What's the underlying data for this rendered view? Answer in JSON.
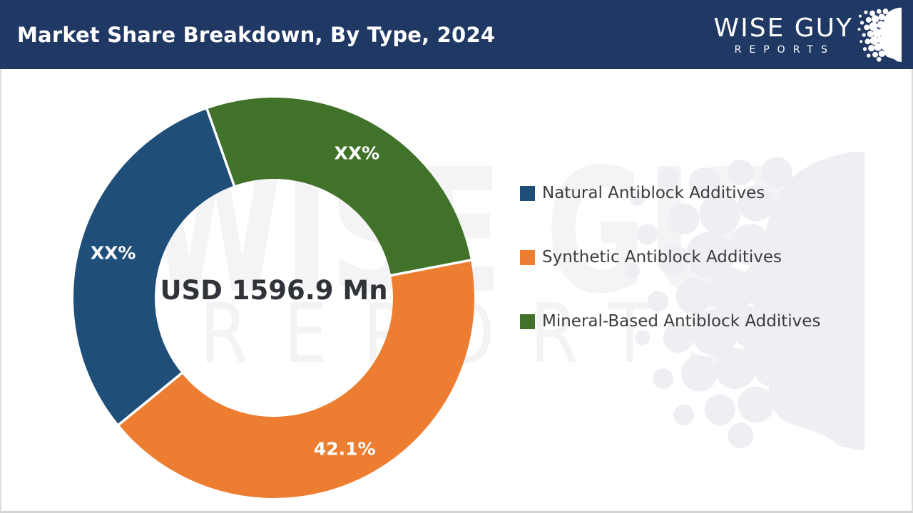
{
  "header": {
    "title": "Market Share Breakdown, By Type, 2024",
    "bg_color": "#203864",
    "logo": {
      "wordmark": "WISE GUY",
      "sub": "REPORTS"
    }
  },
  "watermark": {
    "wordmark": "WISE GUY",
    "sub": "REPORTS"
  },
  "chart_data": {
    "type": "pie",
    "subtype": "donut",
    "title": "Market Share Breakdown, By Type, 2024",
    "center_label": "USD 1596.9 Mn",
    "start_angle_deg": -19.5,
    "legend_position": "right",
    "segments": [
      {
        "label": "Mineral-Based Antiblock Additives",
        "percent": 27.4,
        "display_label": "XX%",
        "color": "#41722A"
      },
      {
        "label": "Synthetic Antiblock Additives",
        "percent": 42.1,
        "display_label": "42.1%",
        "color": "#ED7D31"
      },
      {
        "label": "Natural Antiblock Additives",
        "percent": 30.5,
        "display_label": "XX%",
        "color": "#1F4E79"
      }
    ],
    "legend": [
      {
        "label": "Natural Antiblock Additives",
        "color": "#1F4E79"
      },
      {
        "label": "Synthetic Antiblock Additives",
        "color": "#ED7D31"
      },
      {
        "label": "Mineral-Based Antiblock Additives",
        "color": "#41722A"
      }
    ]
  }
}
